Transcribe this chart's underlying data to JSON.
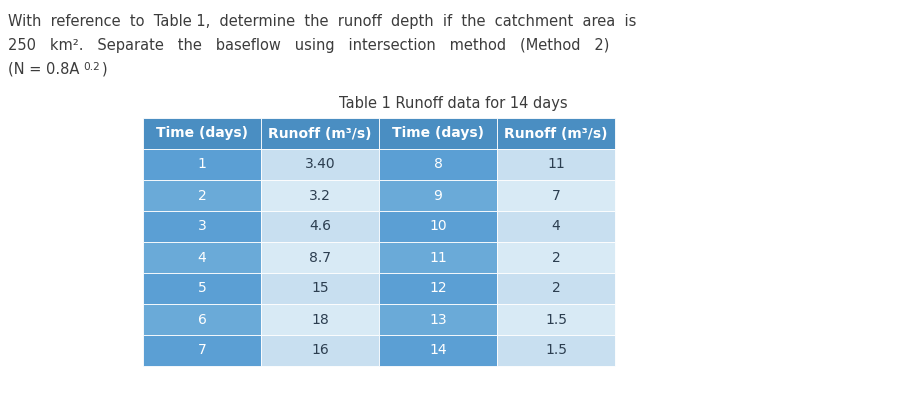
{
  "line1": "With  reference  to  Table 1,  determine  the  runoff  depth  if  the  catchment  area  is",
  "line2": "250   km².   Separate   the   baseflow   using   intersection   method   (Method   2)",
  "line3_a": "(N = 0.8A",
  "line3_sup": "0.2",
  "line3_b": ")",
  "table_title": "Table 1 Runoff data for 14 days",
  "headers": [
    "Time (days)",
    "Runoff (m³/s)",
    "Time (days)",
    "Runoff (m³/s)"
  ],
  "rows": [
    [
      "1",
      "3.40",
      "8",
      "11"
    ],
    [
      "2",
      "3.2",
      "9",
      "7"
    ],
    [
      "3",
      "4.6",
      "10",
      "4"
    ],
    [
      "4",
      "8.7",
      "11",
      "2"
    ],
    [
      "5",
      "15",
      "12",
      "2"
    ],
    [
      "6",
      "18",
      "13",
      "1.5"
    ],
    [
      "7",
      "16",
      "14",
      "1.5"
    ]
  ],
  "header_bg": "#4a8ec2",
  "col0_odd": "#5b9fd4",
  "col0_even": "#6aaad8",
  "col1_odd": "#c8dff0",
  "col1_even": "#d8eaf5",
  "col2_odd": "#5b9fd4",
  "col2_even": "#6aaad8",
  "col3_odd": "#c8dff0",
  "col3_even": "#d8eaf5",
  "header_fg": "#ffffff",
  "col0_fg": "#ffffff",
  "col1_fg": "#2c3e50",
  "col2_fg": "#ffffff",
  "col3_fg": "#2c3e50",
  "bg": "#ffffff",
  "text_color": "#3c3c3c",
  "q_fontsize": 10.5,
  "title_fontsize": 10.5,
  "table_fontsize": 10.0
}
